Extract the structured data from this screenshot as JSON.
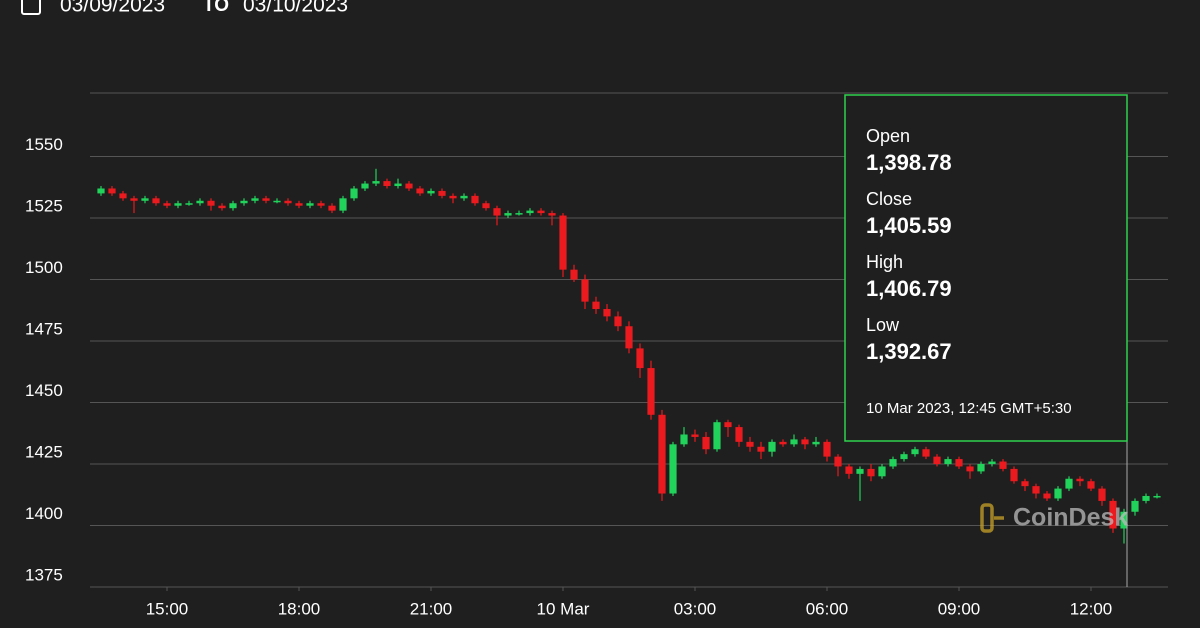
{
  "header": {
    "from": "03/09/2023",
    "to_word": "TO",
    "to": "03/10/2023"
  },
  "watermark": "CoinDesk",
  "tooltip": {
    "items": [
      {
        "label": "Open",
        "value": "1,398.78"
      },
      {
        "label": "Close",
        "value": "1,405.59"
      },
      {
        "label": "High",
        "value": "1,406.79"
      },
      {
        "label": "Low",
        "value": "1,392.67"
      }
    ],
    "time": "10 Mar 2023, 12:45 GMT+5:30"
  },
  "chart_data": {
    "type": "candlestick",
    "up_color": "#22d35b",
    "down_color": "#ea1a1f",
    "grid": true,
    "ylim": [
      1375,
      1575
    ],
    "yticks": [
      1375,
      1400,
      1425,
      1450,
      1475,
      1500,
      1525,
      1550
    ],
    "xlim": [
      -1,
      97
    ],
    "xticks": [
      {
        "value": 6,
        "label": "15:00"
      },
      {
        "value": 18,
        "label": "18:00"
      },
      {
        "value": 30,
        "label": "21:00"
      },
      {
        "value": 42,
        "label": "10 Mar"
      },
      {
        "value": 54,
        "label": "03:00"
      },
      {
        "value": 66,
        "label": "06:00"
      },
      {
        "value": 78,
        "label": "09:00"
      },
      {
        "value": 90,
        "label": "12:00"
      }
    ],
    "open": [
      1535,
      1537,
      1535,
      1533,
      1532,
      1533,
      1531,
      1530,
      1531,
      1531,
      1532,
      1530,
      1529,
      1531,
      1532,
      1533,
      1532,
      1532,
      1531,
      1530,
      1531,
      1530,
      1528,
      1533,
      1537,
      1539,
      1540,
      1538,
      1539,
      1537,
      1535,
      1536,
      1534,
      1533,
      1534,
      1531,
      1529,
      1526,
      1527,
      1527,
      1528,
      1527,
      1526,
      1504,
      1500,
      1491,
      1488,
      1485,
      1481,
      1472,
      1464,
      1445,
      1413,
      1433,
      1437,
      1436,
      1431,
      1442,
      1440,
      1434,
      1432,
      1430,
      1434,
      1433,
      1435,
      1433,
      1434,
      1428,
      1424,
      1421,
      1423,
      1420,
      1424,
      1427,
      1429,
      1431,
      1428,
      1425,
      1427,
      1424,
      1422,
      1425,
      1426,
      1423,
      1418,
      1416,
      1413,
      1411,
      1415,
      1419,
      1418,
      1415,
      1410,
      1398.78,
      1405.59,
      1410,
      1412
    ],
    "high": [
      1538,
      1538,
      1536,
      1534,
      1534,
      1534,
      1532,
      1532,
      1532,
      1533,
      1533,
      1531,
      1532,
      1533,
      1534,
      1534,
      1533,
      1533,
      1532,
      1532,
      1532,
      1531,
      1534,
      1538,
      1540,
      1545,
      1541,
      1541,
      1540,
      1538,
      1537,
      1537,
      1535,
      1535,
      1535,
      1532,
      1530,
      1528,
      1528,
      1529,
      1529,
      1528,
      1527,
      1506,
      1502,
      1493,
      1490,
      1487,
      1483,
      1474,
      1467,
      1447,
      1434,
      1440,
      1439,
      1438,
      1443,
      1443,
      1441,
      1436,
      1434,
      1435,
      1435,
      1437,
      1436,
      1436,
      1435,
      1429,
      1425,
      1424,
      1425,
      1425,
      1428,
      1430,
      1432,
      1432,
      1429,
      1428,
      1428,
      1425,
      1426,
      1427,
      1427,
      1424,
      1419,
      1417,
      1414,
      1416,
      1420,
      1420,
      1419,
      1416,
      1411,
      1406.79,
      1411,
      1413,
      1413
    ],
    "low": [
      1534,
      1534,
      1532,
      1527,
      1531,
      1530,
      1529,
      1529,
      1530,
      1530,
      1528,
      1528,
      1528,
      1530,
      1531,
      1531,
      1531,
      1530,
      1529,
      1529,
      1529,
      1527,
      1527,
      1532,
      1536,
      1538,
      1537,
      1537,
      1536,
      1534,
      1534,
      1533,
      1531,
      1532,
      1530,
      1528,
      1522,
      1525,
      1526,
      1526,
      1526,
      1522,
      1501,
      1499,
      1488,
      1486,
      1483,
      1479,
      1470,
      1460,
      1443,
      1410,
      1412,
      1432,
      1434,
      1429,
      1430,
      1436,
      1432,
      1430,
      1427,
      1428,
      1432,
      1432,
      1431,
      1432,
      1426,
      1420,
      1419,
      1410,
      1418,
      1419,
      1423,
      1426,
      1428,
      1427,
      1424,
      1424,
      1423,
      1419,
      1421,
      1424,
      1422,
      1417,
      1414,
      1411,
      1410,
      1410,
      1414,
      1416,
      1414,
      1408,
      1397,
      1392.67,
      1404,
      1409,
      1411
    ],
    "close": [
      1537,
      1535,
      1533,
      1532,
      1533,
      1531,
      1530,
      1531,
      1531,
      1532,
      1530,
      1529,
      1531,
      1532,
      1533,
      1532,
      1532,
      1531,
      1530,
      1531,
      1530,
      1528,
      1533,
      1537,
      1539,
      1540,
      1538,
      1539,
      1537,
      1535,
      1536,
      1534,
      1533,
      1534,
      1531,
      1529,
      1526,
      1527,
      1527,
      1528,
      1527,
      1526,
      1504,
      1500,
      1491,
      1488,
      1485,
      1481,
      1472,
      1464,
      1445,
      1413,
      1433,
      1437,
      1436,
      1431,
      1442,
      1440,
      1434,
      1432,
      1430,
      1434,
      1433,
      1435,
      1433,
      1434,
      1428,
      1424,
      1421,
      1423,
      1420,
      1424,
      1427,
      1429,
      1431,
      1428,
      1425,
      1427,
      1424,
      1422,
      1425,
      1426,
      1423,
      1418,
      1416,
      1413,
      1411,
      1415,
      1419,
      1418,
      1415,
      1410,
      1398.78,
      1405.59,
      1410,
      1412,
      1412
    ]
  }
}
